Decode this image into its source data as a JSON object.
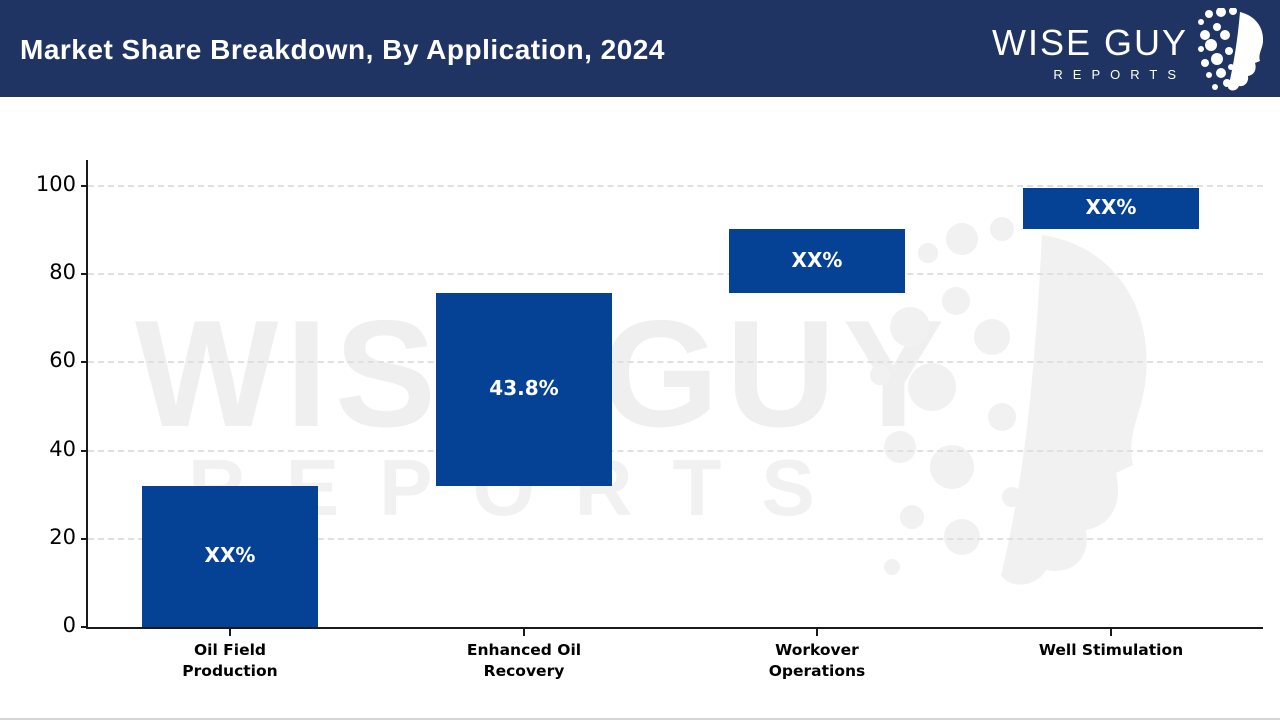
{
  "header": {
    "title": "Market Share Breakdown, By Application, 2024",
    "logo": {
      "line1": "WISE GUY",
      "line2": "REPORTS"
    },
    "bg_color": "#1f3462"
  },
  "watermark": {
    "line1": "WISE GUY",
    "line2": "REPORTS"
  },
  "chart_data": {
    "type": "bar",
    "subtype": "waterfall",
    "title": "Market Share Breakdown, By Application, 2024",
    "xlabel": "",
    "ylabel": "",
    "ylim": [
      0,
      106
    ],
    "yticks": [
      0,
      20,
      40,
      60,
      80,
      100
    ],
    "grid": "horizontal-dashed",
    "legend": "none",
    "bar_color": "#054194",
    "categories": [
      "Oil Field Production",
      "Enhanced Oil Recovery",
      "Workover Operations",
      "Well Stimulation"
    ],
    "category_lines": [
      [
        "Oil Field",
        "Production"
      ],
      [
        "Enhanced Oil",
        "Recovery"
      ],
      [
        "Workover",
        "Operations"
      ],
      [
        "Well Stimulation"
      ]
    ],
    "segments": [
      {
        "category": "Oil Field Production",
        "start": 0,
        "end": 32,
        "height": 32,
        "value_label": "XX%"
      },
      {
        "category": "Enhanced Oil Recovery",
        "start": 32,
        "end": 75.8,
        "height": 43.8,
        "value_label": "43.8%"
      },
      {
        "category": "Workover Operations",
        "start": 75.8,
        "end": 90.2,
        "height": 14.4,
        "value_label": "XX%"
      },
      {
        "category": "Well Stimulation",
        "start": 90.2,
        "end": 99.6,
        "height": 9.4,
        "value_label": "XX%"
      }
    ]
  }
}
